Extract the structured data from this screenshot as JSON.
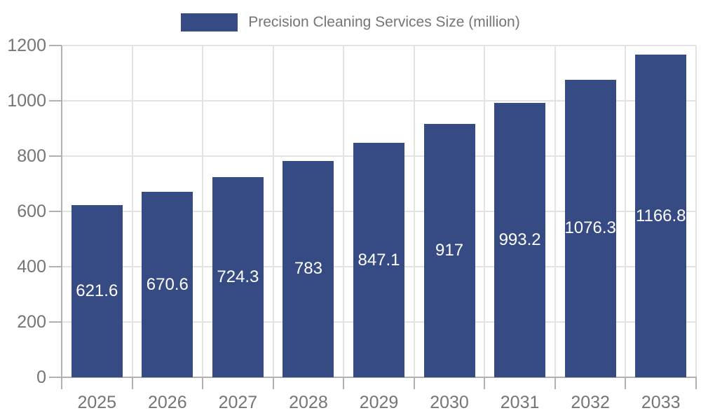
{
  "chart_data": {
    "type": "bar",
    "title": "",
    "legend": "Precision Cleaning Services Size (million)",
    "legend_position": "top",
    "categories": [
      "2025",
      "2026",
      "2027",
      "2028",
      "2029",
      "2030",
      "2031",
      "2032",
      "2033"
    ],
    "series": [
      {
        "name": "Precision Cleaning Services Size (million)",
        "values": [
          621.6,
          670.6,
          724.3,
          783,
          847.1,
          917,
          993.2,
          1076.3,
          1166.8
        ]
      }
    ],
    "value_labels": [
      "621.6",
      "670.6",
      "724.3",
      "783",
      "847.1",
      "917",
      "993.2",
      "1076.3",
      "1166.8"
    ],
    "xlabel": "",
    "ylabel": "",
    "ylim": [
      0,
      1200
    ],
    "yticks": [
      0,
      200,
      400,
      600,
      800,
      1000,
      1200
    ],
    "grid": true,
    "colors": {
      "bar": "#364a84",
      "grid": "#e3e3e3",
      "axis": "#b0b0b0",
      "tick_text": "#757575",
      "value_label": "#ffffff",
      "background": "#ffffff"
    }
  }
}
